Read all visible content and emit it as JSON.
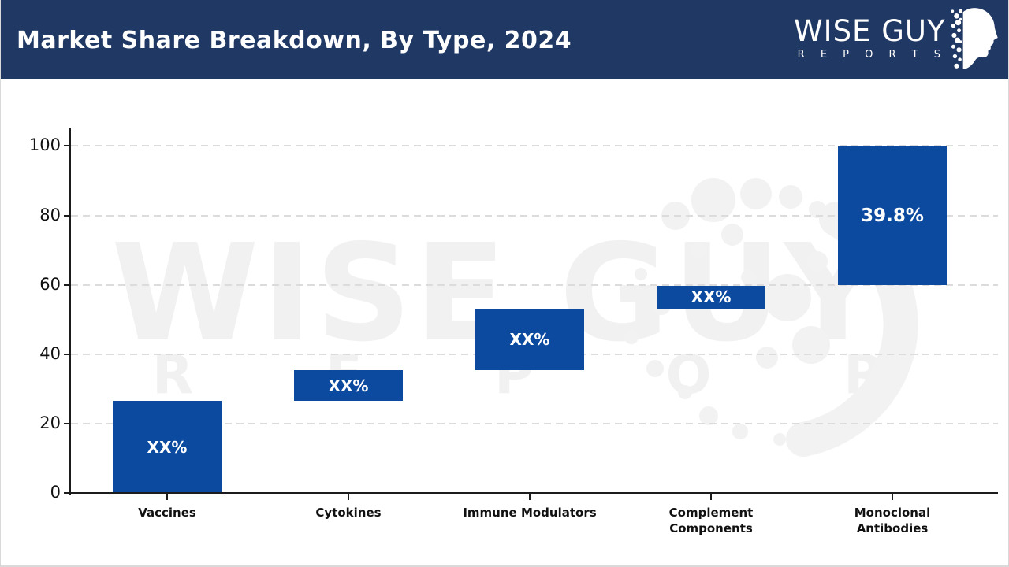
{
  "header": {
    "title": "Market Share Breakdown, By Type, 2024",
    "logo": {
      "line1": "WISE GUY",
      "line2": "R E P O R T S"
    }
  },
  "watermark": {
    "line1": "WISE GUY",
    "line2": "R E P O R T S"
  },
  "chart_data": {
    "type": "bar",
    "subtype": "waterfall",
    "title": "Market Share Breakdown, By Type, 2024",
    "categories": [
      "Vaccines",
      "Cytokines",
      "Immune Modulators",
      "Complement Components",
      "Monoclonal Antibodies"
    ],
    "segments": [
      {
        "category": "Vaccines",
        "start": 0,
        "end": 26.6,
        "label": "XX%",
        "emphasis": false
      },
      {
        "category": "Cytokines",
        "start": 26.6,
        "end": 35.4,
        "label": "XX%",
        "emphasis": false
      },
      {
        "category": "Immune Modulators",
        "start": 35.4,
        "end": 53.1,
        "label": "XX%",
        "emphasis": false
      },
      {
        "category": "Complement Components",
        "start": 53.1,
        "end": 59.8,
        "label": "XX%",
        "emphasis": false
      },
      {
        "category": "Monoclonal Antibodies",
        "start": 60.0,
        "end": 99.8,
        "label": "39.8%",
        "emphasis": true
      }
    ],
    "yticks": [
      0,
      20,
      40,
      60,
      80,
      100
    ],
    "ylim": [
      0,
      105
    ],
    "xlabel": "",
    "ylabel": "",
    "grid": "horizontal-dashed",
    "legend": "none"
  },
  "colors": {
    "header_bg": "#1f3864",
    "bar_fill": "#0b4a9f",
    "bar_label": "#ffffff",
    "title_text": "#ffffff",
    "watermark": "#f1f1f2",
    "gridline": "#dcdcdc",
    "axis": "#1c1c1c",
    "tick_label": "#111111",
    "category_label": "#111111",
    "page_border": "#d9d9d9"
  }
}
